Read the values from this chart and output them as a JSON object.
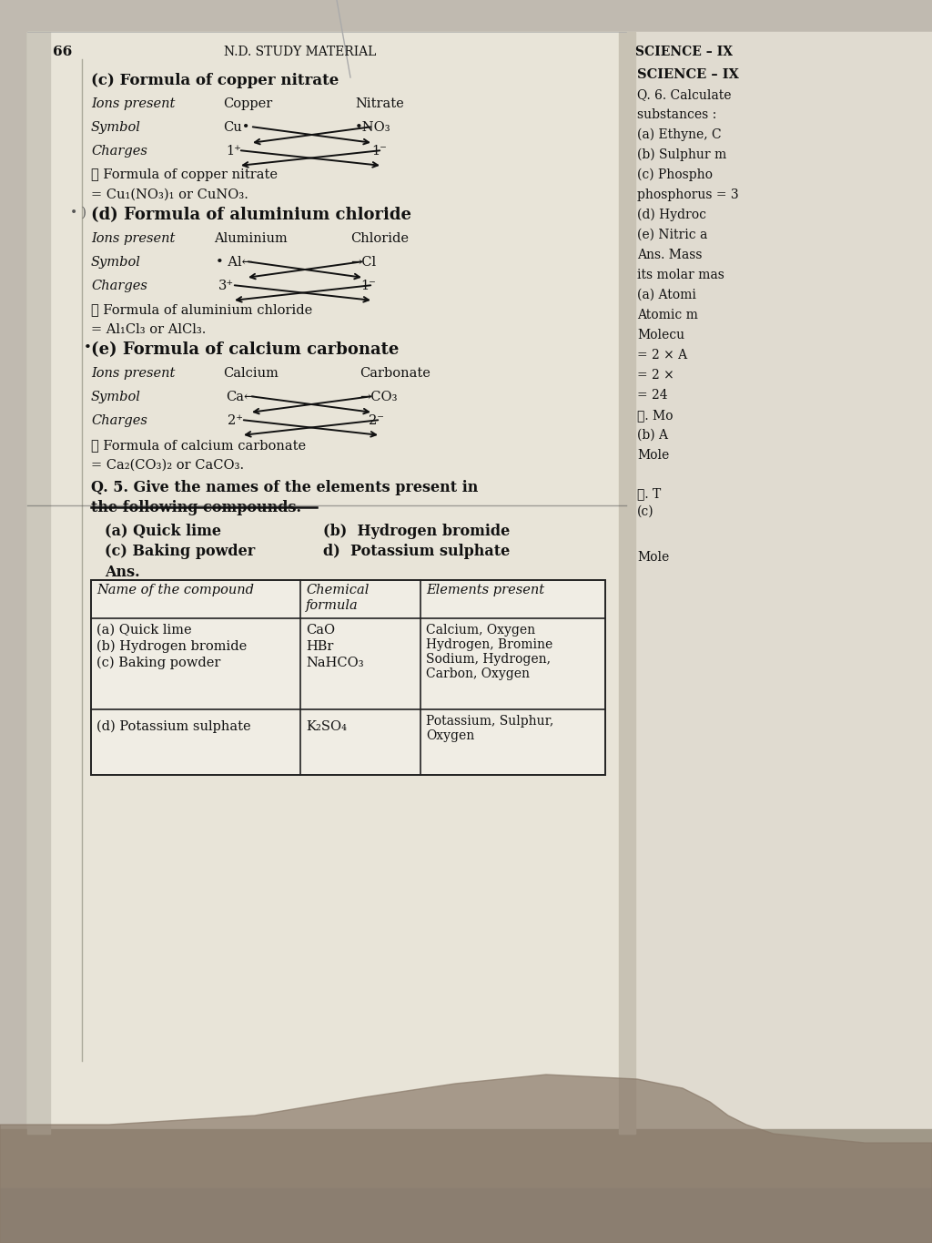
{
  "page_bg": "#ddd8cc",
  "left_page_bg": "#e8e3d6",
  "right_page_bg": "#dedad0",
  "spine_color": "#b8b0a0",
  "text_color": "#111111",
  "page_number": "66",
  "header_center": "N.D. STUDY MATERIAL",
  "header_right": "SCIENCE – IX",
  "sec_c_title": "(c) Formula of copper nitrate",
  "sec_d_title": "(d) Formula of aluminium chloride",
  "sec_e_title": "(e) Formula of calcium carbonate",
  "right_col": [
    "SCIENCE – IX",
    "Q. 6. Calculate",
    "substances :",
    "(a) Ethyne, C",
    "(b) Sulphur m",
    "(c) Phospho",
    "phosphorus = 3",
    "(d) Hydroc",
    "(e) Nitric a",
    "Ans. Mass",
    "its molar mas",
    "(a) Atomi",
    "Atomic m",
    "Molecu",
    "= 2 × A",
    "= 2 ×",
    "= 24",
    "∴. Mo",
    "(b) A",
    "Mole"
  ],
  "bottom_right_lines": [
    "∴. T",
    "(c)",
    "",
    "Mole"
  ]
}
